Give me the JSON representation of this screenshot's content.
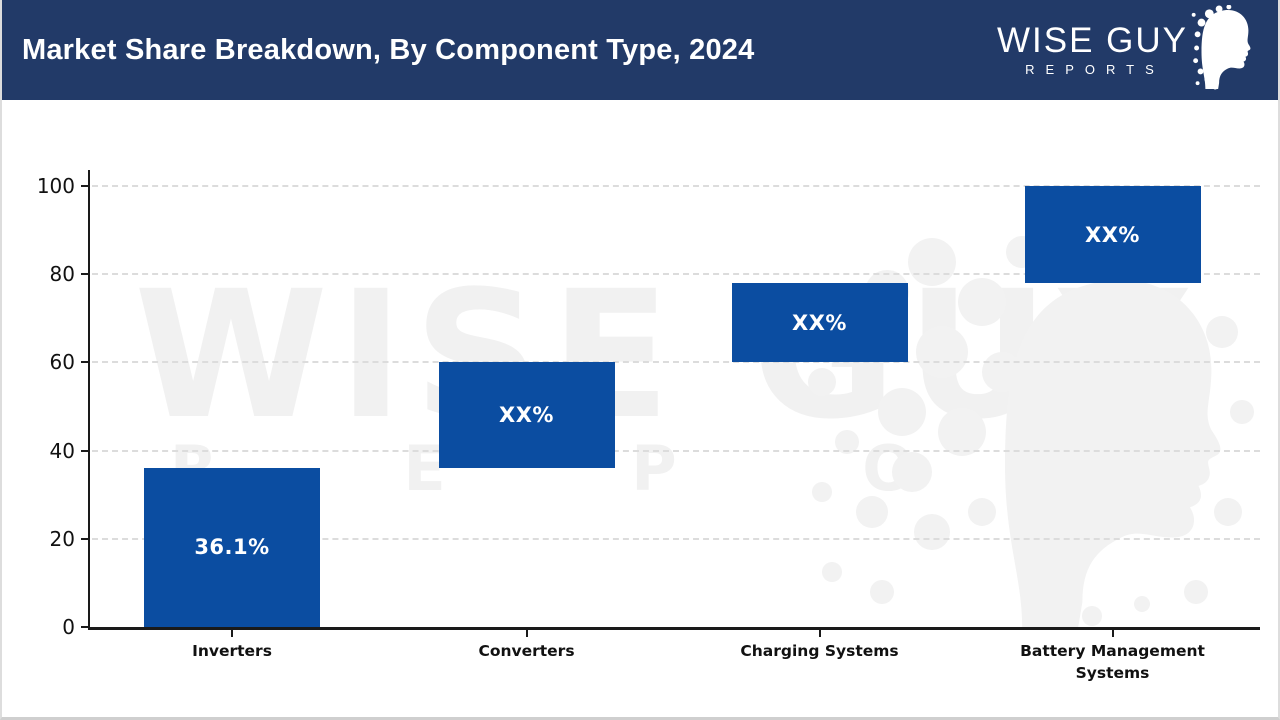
{
  "header": {
    "title": "Market Share Breakdown, By Component Type, 2024",
    "logo": {
      "line1": "WISE GUY",
      "line2": "REPORTS"
    }
  },
  "watermark": {
    "line1": "WISE GUY",
    "line2": "R E P O R T S"
  },
  "colors": {
    "header_bg": "#223a68",
    "bar": "#0b4da1",
    "bar_label": "#ffffff",
    "axis": "#1a1a1a",
    "gridline": "#dcdcdc",
    "watermark": "#f1f1f1"
  },
  "chart_data": {
    "type": "bar",
    "subtype": "waterfall",
    "title": "Market Share Breakdown, By Component Type, 2024",
    "categories": [
      "Inverters",
      "Converters",
      "Charging Systems",
      "Battery Management Systems"
    ],
    "segments": [
      {
        "category": "Inverters",
        "start": 0,
        "end": 36.1,
        "label": "36.1%"
      },
      {
        "category": "Converters",
        "start": 36.1,
        "end": 60,
        "label": "XX%"
      },
      {
        "category": "Charging Systems",
        "start": 60,
        "end": 78,
        "label": "XX%"
      },
      {
        "category": "Battery Management Systems",
        "start": 78,
        "end": 100,
        "label": "XX%"
      }
    ],
    "ylim": [
      0,
      100
    ],
    "yticks": [
      0,
      20,
      40,
      60,
      80,
      100
    ],
    "xlabel": "",
    "ylabel": "",
    "grid": "horizontal-dashed",
    "legend": "none",
    "bar_color": "#0b4da1",
    "bar_label_color": "#ffffff"
  }
}
